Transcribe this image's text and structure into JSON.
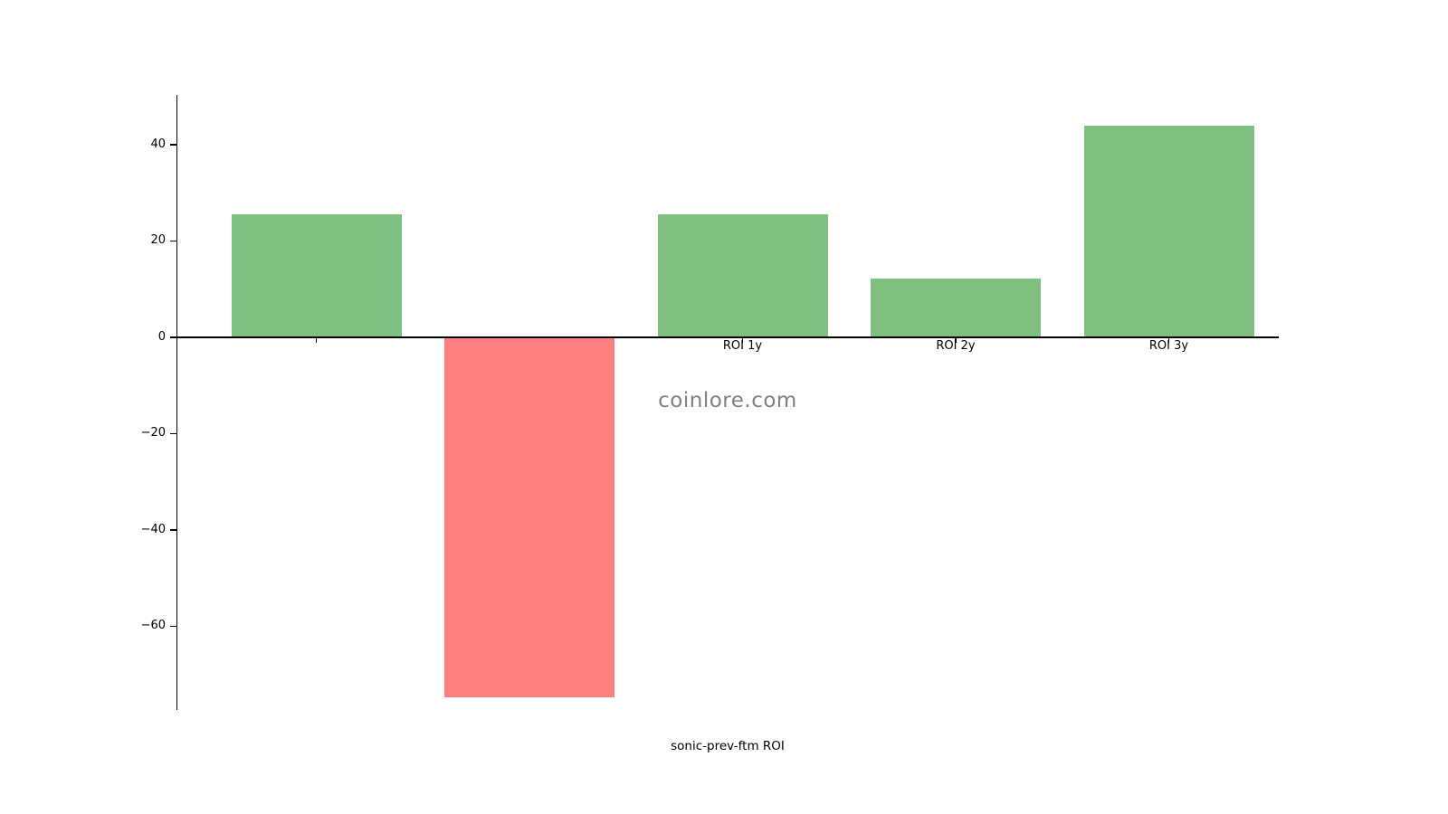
{
  "watermark": "coinlore.com",
  "chart_data": {
    "type": "bar",
    "title": "",
    "xlabel": "sonic-prev-ftm ROI",
    "ylabel": "",
    "categories": [
      "",
      "",
      "ROI 1y",
      "ROI 2y",
      "ROI 3y"
    ],
    "values": [
      25.5,
      -74.7,
      25.5,
      12.1,
      44
    ],
    "yticks": [
      40,
      20,
      0,
      -20,
      -40,
      -60
    ],
    "ylim": [
      -77.4,
      50.3
    ],
    "grid": false,
    "legend": null,
    "positive_color": "#7fbf7f",
    "negative_color": "#ff7f7f",
    "axis_color": "#000000",
    "watermark_color": "#808080"
  }
}
